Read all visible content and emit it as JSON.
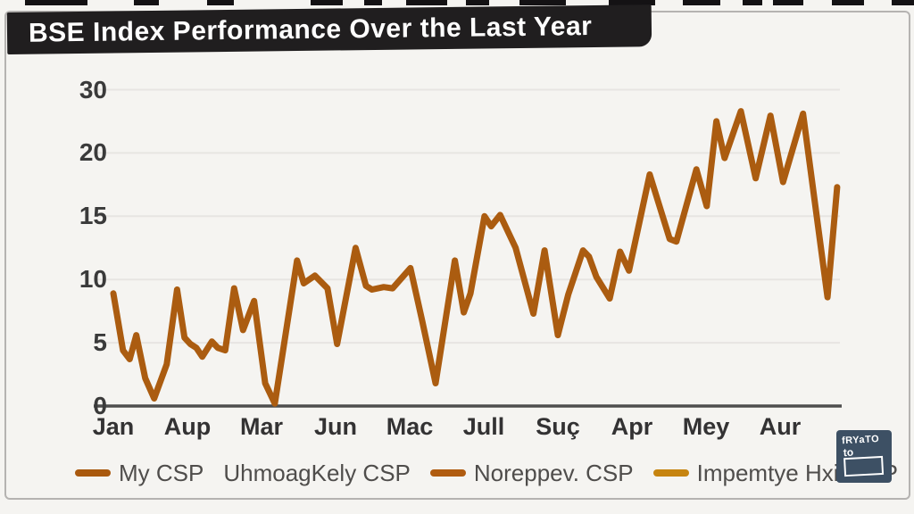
{
  "title": {
    "text": "BSE Index Performance Over the Last Year"
  },
  "colors": {
    "line": "#ab5c10",
    "banner": "#201e1f",
    "grid": "#e7e5e2",
    "axis_baseline": "#4e4e4e",
    "tick_text": "#3a3a3a",
    "legend_text": "#4f4d4b",
    "background": "#f5f4f1",
    "card_border": "#b5b3b1",
    "logo_background": "#3d5064"
  },
  "chart_data": {
    "type": "line",
    "title": "BSE Index Performance Over the Last Year",
    "x_tick_labels": [
      "Jan",
      "Aup",
      "Mar",
      "Jun",
      "Mac",
      "Jull",
      "Suç",
      "Apr",
      "Mey",
      "Aur"
    ],
    "y_tick_labels": [
      "0",
      "5",
      "10",
      "15",
      "20",
      "30"
    ],
    "y_tick_values": [
      0,
      5,
      10,
      15,
      20,
      30
    ],
    "ylim": [
      0,
      30
    ],
    "grid": true,
    "legend_position": "bottom",
    "series": [
      {
        "name": "My CSP",
        "points": [
          [
            0.0,
            8.9
          ],
          [
            0.13,
            4.4
          ],
          [
            0.22,
            3.7
          ],
          [
            0.31,
            5.6
          ],
          [
            0.43,
            2.2
          ],
          [
            0.55,
            0.6
          ],
          [
            0.72,
            3.3
          ],
          [
            0.86,
            9.2
          ],
          [
            0.96,
            5.4
          ],
          [
            1.04,
            4.9
          ],
          [
            1.12,
            4.6
          ],
          [
            1.2,
            3.9
          ],
          [
            1.33,
            5.1
          ],
          [
            1.41,
            4.6
          ],
          [
            1.51,
            4.4
          ],
          [
            1.63,
            9.3
          ],
          [
            1.75,
            6.0
          ],
          [
            1.9,
            8.3
          ],
          [
            2.05,
            1.8
          ],
          [
            2.18,
            0.2
          ],
          [
            2.48,
            11.5
          ],
          [
            2.57,
            9.7
          ],
          [
            2.72,
            10.3
          ],
          [
            2.89,
            9.3
          ],
          [
            3.02,
            4.9
          ],
          [
            3.27,
            12.5
          ],
          [
            3.41,
            9.5
          ],
          [
            3.49,
            9.2
          ],
          [
            3.65,
            9.4
          ],
          [
            3.77,
            9.3
          ],
          [
            4.01,
            10.9
          ],
          [
            4.17,
            6.7
          ],
          [
            4.35,
            1.8
          ],
          [
            4.61,
            11.5
          ],
          [
            4.73,
            7.4
          ],
          [
            4.82,
            8.9
          ],
          [
            5.01,
            15.0
          ],
          [
            5.1,
            14.2
          ],
          [
            5.22,
            15.1
          ],
          [
            5.43,
            12.5
          ],
          [
            5.67,
            7.3
          ],
          [
            5.82,
            12.3
          ],
          [
            6.0,
            5.6
          ],
          [
            6.14,
            8.8
          ],
          [
            6.34,
            12.3
          ],
          [
            6.42,
            11.8
          ],
          [
            6.52,
            10.2
          ],
          [
            6.7,
            8.5
          ],
          [
            6.84,
            12.2
          ],
          [
            6.96,
            10.7
          ],
          [
            7.24,
            18.3
          ],
          [
            7.51,
            13.2
          ],
          [
            7.6,
            13.0
          ],
          [
            7.87,
            18.7
          ],
          [
            8.01,
            15.8
          ],
          [
            8.14,
            25.0
          ],
          [
            8.25,
            19.6
          ],
          [
            8.47,
            26.6
          ],
          [
            8.67,
            18.0
          ],
          [
            8.87,
            25.9
          ],
          [
            9.04,
            17.7
          ],
          [
            9.31,
            26.2
          ],
          [
            9.64,
            8.6
          ],
          [
            9.77,
            17.3
          ]
        ]
      }
    ]
  },
  "legend": {
    "items": [
      {
        "label": "My CSP",
        "marker": true,
        "color": "#a9590e"
      },
      {
        "label": "UhmoagKely CSP",
        "marker": false,
        "color": ""
      },
      {
        "label": "Noreppev. CSP",
        "marker": true,
        "color": "#b05c10"
      },
      {
        "label": "Impemtye Hxil CSP",
        "marker": true,
        "color": "#c68410"
      }
    ]
  },
  "logo": {
    "line1": "fRYaTO",
    "line2": "to"
  }
}
